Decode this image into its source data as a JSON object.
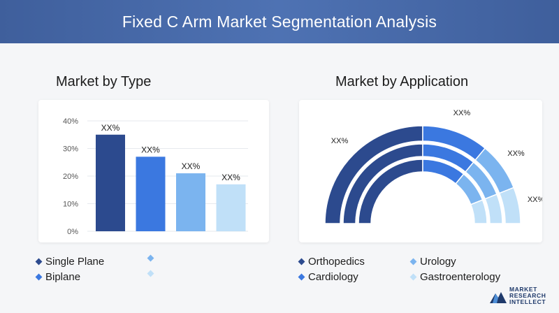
{
  "header": {
    "title": "Fixed C Arm Market Segmentation Analysis"
  },
  "left": {
    "title": "Market by Type"
  },
  "right": {
    "title": "Market by Application"
  },
  "chart_data": [
    {
      "type": "bar",
      "categories": [
        "Single Plane",
        "Biplane",
        "",
        ""
      ],
      "values": [
        35,
        27,
        21,
        17
      ],
      "data_labels": [
        "XX%",
        "XX%",
        "XX%",
        "XX%"
      ],
      "yticks": [
        "0%",
        "10%",
        "20%",
        "30%",
        "40%"
      ],
      "ylim": [
        0,
        40
      ],
      "grid": true,
      "colors": [
        "#2c4a8e",
        "#3b78e0",
        "#7bb4ef",
        "#c0e0f8"
      ],
      "legend": [
        {
          "label": "Single Plane",
          "color": "#2c4a8e"
        },
        {
          "label": "Biplane",
          "color": "#3b78e0"
        },
        {
          "label": "",
          "color": "#7bb4ef"
        },
        {
          "label": "",
          "color": "#c0e0f8"
        }
      ]
    },
    {
      "type": "pie",
      "shape": "half-donut",
      "categories": [
        "Orthopedics",
        "Cardiology",
        "Urology",
        "Gastroenterology"
      ],
      "values": [
        50,
        22,
        16,
        12
      ],
      "data_labels": [
        "XX%",
        "XX%",
        "XX%",
        "XX%"
      ],
      "colors": [
        "#2c4a8e",
        "#3b78e0",
        "#7bb4ef",
        "#c0e0f8"
      ],
      "legend": [
        {
          "label": "Orthopedics",
          "color": "#2c4a8e"
        },
        {
          "label": "Urology",
          "color": "#7bb4ef"
        },
        {
          "label": "Cardiology",
          "color": "#3b78e0"
        },
        {
          "label": "Gastroenterology",
          "color": "#c0e0f8"
        }
      ]
    }
  ],
  "logo": {
    "line1": "MARKET",
    "line2": "RESEARCH",
    "line3": "INTELLECT"
  }
}
